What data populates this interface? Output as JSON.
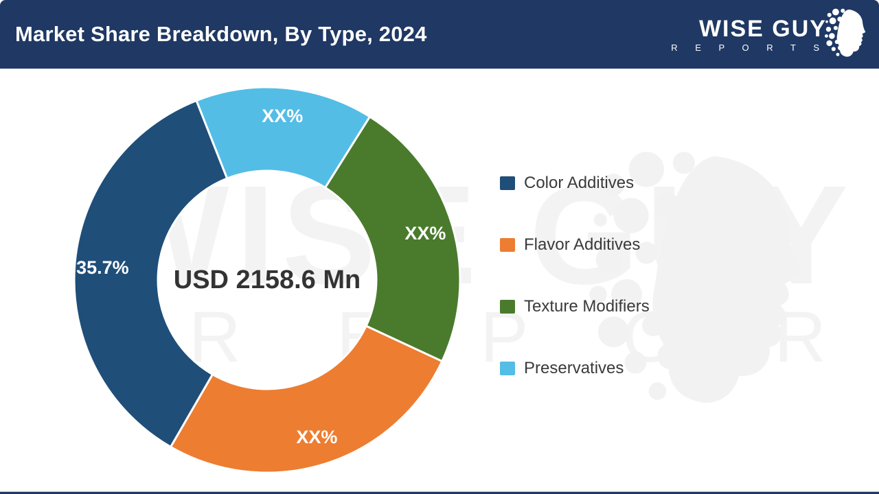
{
  "header": {
    "title": "Market Share Breakdown, By Type, 2024",
    "logo": {
      "name": "WISE GUY",
      "tagline": "R E P O R T S"
    }
  },
  "watermark": {
    "line1": "WISE GUY",
    "line2": "R E P O R T S"
  },
  "chart_data": {
    "type": "pie",
    "subtype": "donut",
    "title": "Market Share Breakdown, By Type, 2024",
    "center_total": "USD 2158.6 Mn",
    "start_angle_deg": 111.5,
    "direction": "counterclockwise",
    "inner_radius_ratio": 0.567,
    "categories": [
      "Color Additives",
      "Flavor Additives",
      "Texture Modifiers",
      "Preservatives"
    ],
    "values_pct": [
      35.7,
      26.4,
      23.0,
      14.9
    ],
    "slice_labels": [
      "35.7%",
      "XX%",
      "XX%",
      "XX%"
    ],
    "colors": [
      "#1F4E79",
      "#ED7D31",
      "#4A7B2C",
      "#53BDE6"
    ],
    "legend_position": "right"
  },
  "colors": {
    "background": "#FFFFFF",
    "header_bg": "#1F3864",
    "title_text": "#FFFFFF",
    "center_text": "#333333",
    "legend_text": "#3A3A3A",
    "slice_label_text": "#FFFFFF",
    "watermark": "#F3F3F3",
    "bottom_bar": "#1F3864"
  }
}
